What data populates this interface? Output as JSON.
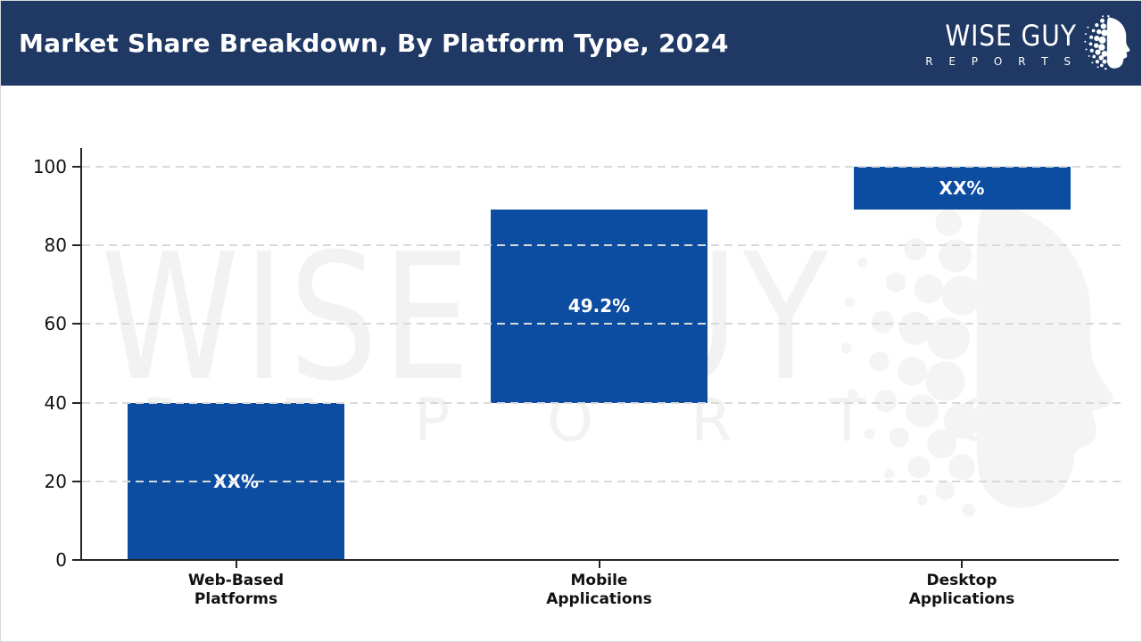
{
  "header": {
    "title": "Market Share Breakdown, By Platform Type, 2024",
    "logo": {
      "line1": "WISE GUY",
      "line2": "R E P O R T S"
    }
  },
  "watermark": {
    "line1": "WISE GUY",
    "line2": "R E P O R T S"
  },
  "colors": {
    "header_bg": "#1F3864",
    "bar_fill": "#0C4DA2",
    "grid": "#D9D9D9",
    "axis": "#262626",
    "watermark": "#F2F2F2",
    "watermark_face": "#F4F4F4",
    "title_text": "#FFFFFF",
    "bar_label_text": "#FFFFFF"
  },
  "chart_data": {
    "type": "bar",
    "subtype": "waterfall",
    "title": "Market Share Breakdown, By Platform Type, 2024",
    "xlabel": "",
    "ylabel": "",
    "ylim": [
      0,
      100
    ],
    "yticks": [
      0,
      20,
      40,
      60,
      80,
      100
    ],
    "grid": "horizontal-dashed",
    "legend": "none",
    "categories": [
      "Web-Based\nPlatforms",
      "Mobile\nApplications",
      "Desktop\nApplications"
    ],
    "bars": [
      {
        "category": "Web-Based\nPlatforms",
        "start": 0,
        "end": 40,
        "value": 40,
        "label": "XX%"
      },
      {
        "category": "Mobile\nApplications",
        "start": 40,
        "end": 89.2,
        "value": 49.2,
        "label": "49.2%"
      },
      {
        "category": "Desktop\nApplications",
        "start": 89.2,
        "end": 100,
        "value": 10.8,
        "label": "XX%"
      }
    ]
  }
}
